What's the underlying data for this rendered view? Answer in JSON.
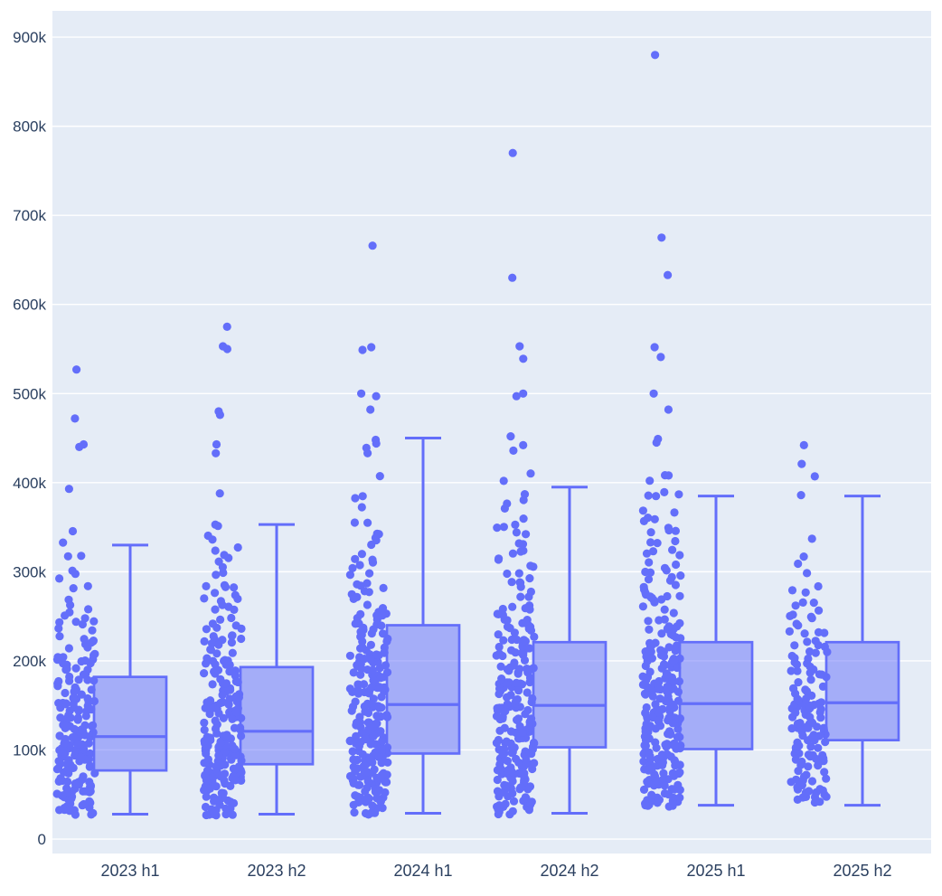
{
  "page": {
    "background": "#ffffff"
  },
  "chart": {
    "plot_bg": "#e5ecf6",
    "grid_color": "#ffffff",
    "accent": "#636efa",
    "box_fill": "rgba(99,110,250,0.5)",
    "label_color": "#2a3f5f",
    "tick_font_size": 17
  },
  "chart_data": {
    "type": "box",
    "subtype": "box-with-all-points",
    "orientation": "vertical",
    "title": "",
    "xlabel": "",
    "ylabel": "",
    "legend": "none",
    "grid": true,
    "categories": [
      "2023 h1",
      "2023 h2",
      "2024 h1",
      "2024 h2",
      "2025 h1",
      "2025 h2"
    ],
    "y_axis": {
      "range": [
        -16200,
        929500
      ],
      "tick_values": [
        0,
        100000,
        200000,
        300000,
        400000,
        500000,
        600000,
        700000,
        800000,
        900000
      ],
      "tick_labels": [
        "0",
        "100k",
        "200k",
        "300k",
        "400k",
        "500k",
        "600k",
        "700k",
        "800k",
        "900k"
      ]
    },
    "cloud_band_edges": [
      25000,
      50000,
      75000,
      100000,
      125000,
      150000,
      175000,
      200000,
      225000,
      250000,
      275000,
      300000,
      325000,
      350000,
      375000,
      400000,
      425000
    ],
    "series": [
      {
        "name": "2023 h1",
        "whisker_low": 28000,
        "q1": 77000,
        "median": 115000,
        "q3": 182000,
        "whisker_high": 330000,
        "high_points": [
          527000,
          472000,
          443000,
          440000,
          393000
        ],
        "band_counts": [
          26,
          30,
          30,
          28,
          22,
          20,
          16,
          14,
          8,
          5,
          4,
          3,
          2,
          0,
          0,
          0
        ]
      },
      {
        "name": "2023 h2",
        "whisker_low": 28000,
        "q1": 84000,
        "median": 121000,
        "q3": 193000,
        "whisker_high": 353000,
        "high_points": [
          575000,
          553000,
          550000,
          480000,
          476000,
          443000,
          433000,
          388000
        ],
        "band_counts": [
          26,
          30,
          30,
          28,
          24,
          20,
          16,
          14,
          10,
          8,
          7,
          5,
          3,
          2,
          0,
          0
        ]
      },
      {
        "name": "2024 h1",
        "whisker_low": 29000,
        "q1": 96000,
        "median": 151000,
        "q3": 240000,
        "whisker_high": 450000,
        "high_points": [
          666000,
          552000,
          549000,
          500000,
          497000,
          482000,
          448000,
          444000,
          439000,
          433000
        ],
        "band_counts": [
          24,
          28,
          30,
          30,
          26,
          24,
          20,
          18,
          14,
          10,
          8,
          6,
          5,
          3,
          2,
          1
        ]
      },
      {
        "name": "2024 h2",
        "whisker_low": 29000,
        "q1": 103000,
        "median": 150000,
        "q3": 221000,
        "whisker_high": 395000,
        "high_points": [
          770000,
          630000,
          553000,
          539000,
          500000,
          497000,
          452000,
          442000,
          436000
        ],
        "band_counts": [
          22,
          28,
          30,
          30,
          26,
          24,
          20,
          18,
          14,
          10,
          8,
          7,
          5,
          4,
          3,
          2
        ]
      },
      {
        "name": "2025 h1",
        "whisker_low": 38000,
        "q1": 101000,
        "median": 152000,
        "q3": 221000,
        "whisker_high": 385000,
        "high_points": [
          880000,
          675000,
          633000,
          552000,
          541000,
          500000,
          482000,
          449000,
          445000
        ],
        "band_counts": [
          16,
          26,
          30,
          32,
          28,
          26,
          22,
          20,
          16,
          12,
          10,
          8,
          7,
          5,
          4,
          3
        ]
      },
      {
        "name": "2025 h2",
        "whisker_low": 38000,
        "q1": 111000,
        "median": 153000,
        "q3": 221000,
        "whisker_high": 385000,
        "high_points": [
          442000,
          421000,
          407000,
          386000,
          337000,
          317000
        ],
        "band_counts": [
          8,
          16,
          20,
          22,
          20,
          16,
          13,
          11,
          8,
          6,
          4,
          1,
          0,
          0,
          0,
          0
        ]
      }
    ]
  }
}
